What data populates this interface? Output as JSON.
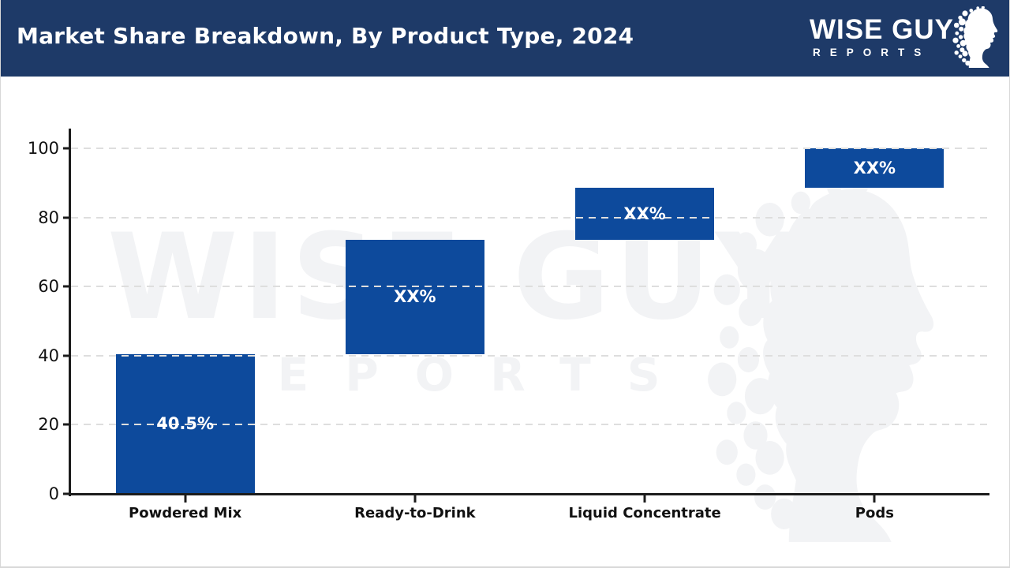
{
  "header": {
    "title": "Market Share Breakdown, By Product Type, 2024",
    "logo": {
      "name": "WISE GUY",
      "sub": "REPORTS"
    }
  },
  "watermark": {
    "line1": "WISE GUY",
    "line2": "REPORTS"
  },
  "chart_data": {
    "type": "bar",
    "subtype": "waterfall-floating-bars",
    "title": "Market Share Breakdown, By Product Type, 2024",
    "categories": [
      "Powdered Mix",
      "Ready-to-Drink",
      "Liquid Concentrate",
      "Pods"
    ],
    "segments": [
      {
        "category": "Powdered Mix",
        "start": 0,
        "end": 40.5,
        "label": "40.5%"
      },
      {
        "category": "Ready-to-Drink",
        "start": 40.5,
        "end": 73.5,
        "label": "XX%"
      },
      {
        "category": "Liquid Concentrate",
        "start": 73.5,
        "end": 88.5,
        "label": "XX%"
      },
      {
        "category": "Pods",
        "start": 88.5,
        "end": 100,
        "label": "XX%"
      }
    ],
    "xlabel": "",
    "ylabel": "",
    "ylim": [
      0,
      100
    ],
    "yticks": [
      0,
      20,
      40,
      60,
      80,
      100
    ],
    "grid": "dashed-horizontal",
    "legend": "none"
  },
  "colors": {
    "header_bg": "#1e3a68",
    "bar": "#0d4a9c",
    "grid": "#dedede",
    "axis": "#1c1c1c",
    "bar_label_text": "#ffffff",
    "watermark": "#f2f3f5"
  }
}
